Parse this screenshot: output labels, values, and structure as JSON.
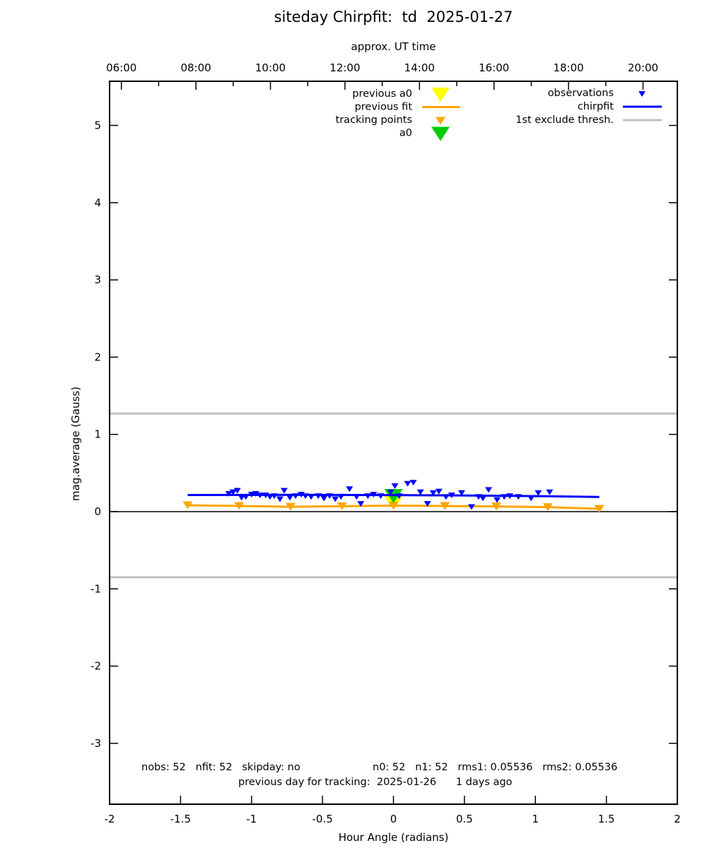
{
  "title": "siteday Chirpfit:  td  2025-01-27",
  "axes": {
    "top": {
      "label": "approx. UT time",
      "major_hours": [
        6,
        8,
        10,
        12,
        14,
        16,
        18,
        20
      ],
      "major_labels": [
        "06:00",
        "08:00",
        "10:00",
        "12:00",
        "14:00",
        "16:00",
        "18:00",
        "20:00"
      ],
      "minor_hours": [
        7,
        9,
        11,
        13,
        15,
        17,
        19
      ]
    },
    "bottom": {
      "label": "Hour Angle (radians)",
      "ticks": [
        -2,
        -1.5,
        -1,
        -0.5,
        0,
        0.5,
        1,
        1.5,
        2
      ],
      "tick_labels": [
        "-2",
        "-1.5",
        "-1",
        "-0.5",
        "0",
        "0.5",
        "1",
        "1.5",
        "2"
      ]
    },
    "left": {
      "label": "mag.average (Gauss)",
      "ticks": [
        -3,
        -2,
        -1,
        0,
        1,
        2,
        3,
        4,
        5
      ],
      "tick_labels": [
        "-3",
        "-2",
        "-1",
        "0",
        "1",
        "2",
        "3",
        "4",
        "5"
      ]
    }
  },
  "legend": {
    "left": [
      {
        "label": "previous a0",
        "marker": "triangle-big",
        "color": "#ffff00"
      },
      {
        "label": "previous fit",
        "marker": "line",
        "color": "#ffa500"
      },
      {
        "label": "tracking points",
        "marker": "triangle-small",
        "color": "#ffa500"
      },
      {
        "label": "a0",
        "marker": "triangle-big",
        "color": "#00cc00"
      }
    ],
    "right": [
      {
        "label": "observations",
        "marker": "triangle-tiny",
        "color": "#0000ff"
      },
      {
        "label": "chirpfit",
        "marker": "line",
        "color": "#0000ff"
      },
      {
        "label": "1st exclude thresh.",
        "marker": "line",
        "color": "#c0c0c0"
      }
    ]
  },
  "stats": {
    "line1_left": "nobs: 52   nfit: 52   skipday: no",
    "line1_right": "n0: 52   n1: 52   rms1: 0.05536   rms2: 0.05536",
    "line2": "previous day for tracking:  2025-01-26      1 days ago"
  },
  "colors": {
    "observations": "#0000ff",
    "chirpfit": "#0000ff",
    "previous_fit": "#ffa500",
    "tracking_points": "#ffa500",
    "previous_a0": "#ffff00",
    "a0": "#00cc00",
    "exclude_threshold": "#c0c0c0",
    "axis": "#000000"
  },
  "chart_data": {
    "type": "scatter",
    "title": "siteday Chirpfit:  td  2025-01-27",
    "xlabel": "Hour Angle (radians)",
    "ylabel": "mag.average (Gauss)",
    "x2label": "approx. UT time",
    "xlim": [
      -2,
      2
    ],
    "ylim": [
      -3.79,
      5.57
    ],
    "x2lim_hours": [
      5.68,
      20.92
    ],
    "grid": false,
    "legend_position": "top-inside",
    "zero_line": 0,
    "series": [
      {
        "name": "previous a0",
        "type": "scatter",
        "marker": "triangle-down-big",
        "color": "#ffff00",
        "points": [
          [
            0,
            0.11
          ]
        ]
      },
      {
        "name": "previous fit",
        "type": "line",
        "color": "#ffa500",
        "points": [
          [
            -1.45,
            0.082
          ],
          [
            -1.0875,
            0.073
          ],
          [
            -0.725,
            0.063
          ],
          [
            -0.3625,
            0.07
          ],
          [
            0,
            0.078
          ],
          [
            0.3625,
            0.073
          ],
          [
            0.725,
            0.068
          ],
          [
            1.0875,
            0.058
          ],
          [
            1.45,
            0.035
          ]
        ]
      },
      {
        "name": "tracking points",
        "type": "scatter",
        "marker": "triangle-down",
        "color": "#ffa500",
        "points": [
          [
            -1.45,
            0.082
          ],
          [
            -1.0875,
            0.073
          ],
          [
            -0.725,
            0.063
          ],
          [
            -0.3625,
            0.07
          ],
          [
            0,
            0.078
          ],
          [
            0.3625,
            0.073
          ],
          [
            0.725,
            0.068
          ],
          [
            1.0875,
            0.058
          ],
          [
            1.45,
            0.035
          ]
        ]
      },
      {
        "name": "a0",
        "type": "scatter",
        "marker": "triangle-down-big",
        "color": "#00cc00",
        "points": [
          [
            0,
            0.2
          ]
        ]
      },
      {
        "name": "observations",
        "type": "scatter",
        "marker": "triangle-down-tiny",
        "color": "#0000ff",
        "points": [
          [
            -1.16,
            0.23
          ],
          [
            -1.13,
            0.25
          ],
          [
            -1.1,
            0.27
          ],
          [
            -1.07,
            0.18
          ],
          [
            -1.04,
            0.19
          ],
          [
            -1.0,
            0.22
          ],
          [
            -0.97,
            0.23
          ],
          [
            -0.94,
            0.21
          ],
          [
            -0.9,
            0.21
          ],
          [
            -0.87,
            0.19
          ],
          [
            -0.84,
            0.2
          ],
          [
            -0.8,
            0.16
          ],
          [
            -0.77,
            0.27
          ],
          [
            -0.73,
            0.18
          ],
          [
            -0.69,
            0.2
          ],
          [
            -0.65,
            0.22
          ],
          [
            -0.62,
            0.2
          ],
          [
            -0.58,
            0.19
          ],
          [
            -0.53,
            0.2
          ],
          [
            -0.49,
            0.17
          ],
          [
            -0.45,
            0.2
          ],
          [
            -0.41,
            0.16
          ],
          [
            -0.37,
            0.19
          ],
          [
            -0.31,
            0.29
          ],
          [
            -0.26,
            0.19
          ],
          [
            -0.23,
            0.1
          ],
          [
            -0.18,
            0.2
          ],
          [
            -0.14,
            0.22
          ],
          [
            -0.09,
            0.2
          ],
          [
            -0.02,
            0.25
          ],
          [
            0.01,
            0.33
          ],
          [
            0.04,
            0.2
          ],
          [
            0.1,
            0.36
          ],
          [
            0.14,
            0.375
          ],
          [
            0.19,
            0.25
          ],
          [
            0.24,
            0.1
          ],
          [
            0.28,
            0.24
          ],
          [
            0.32,
            0.26
          ],
          [
            0.37,
            0.19
          ],
          [
            0.41,
            0.21
          ],
          [
            0.48,
            0.24
          ],
          [
            0.55,
            0.06
          ],
          [
            0.6,
            0.19
          ],
          [
            0.63,
            0.17
          ],
          [
            0.67,
            0.28
          ],
          [
            0.73,
            0.15
          ],
          [
            0.78,
            0.19
          ],
          [
            0.82,
            0.2
          ],
          [
            0.88,
            0.19
          ],
          [
            0.97,
            0.17
          ],
          [
            1.02,
            0.24
          ],
          [
            1.1,
            0.25
          ]
        ]
      },
      {
        "name": "chirpfit",
        "type": "line",
        "color": "#0000ff",
        "points": [
          [
            -1.45,
            0.215
          ],
          [
            -1.0875,
            0.216
          ],
          [
            -0.725,
            0.217
          ],
          [
            -0.3625,
            0.216
          ],
          [
            0,
            0.214
          ],
          [
            0.3625,
            0.211
          ],
          [
            0.725,
            0.206
          ],
          [
            1.0875,
            0.199
          ],
          [
            1.45,
            0.19
          ]
        ]
      },
      {
        "name": "1st exclude thresh.",
        "type": "hline",
        "color": "#c0c0c0",
        "values": [
          1.27,
          -0.85
        ]
      }
    ]
  }
}
